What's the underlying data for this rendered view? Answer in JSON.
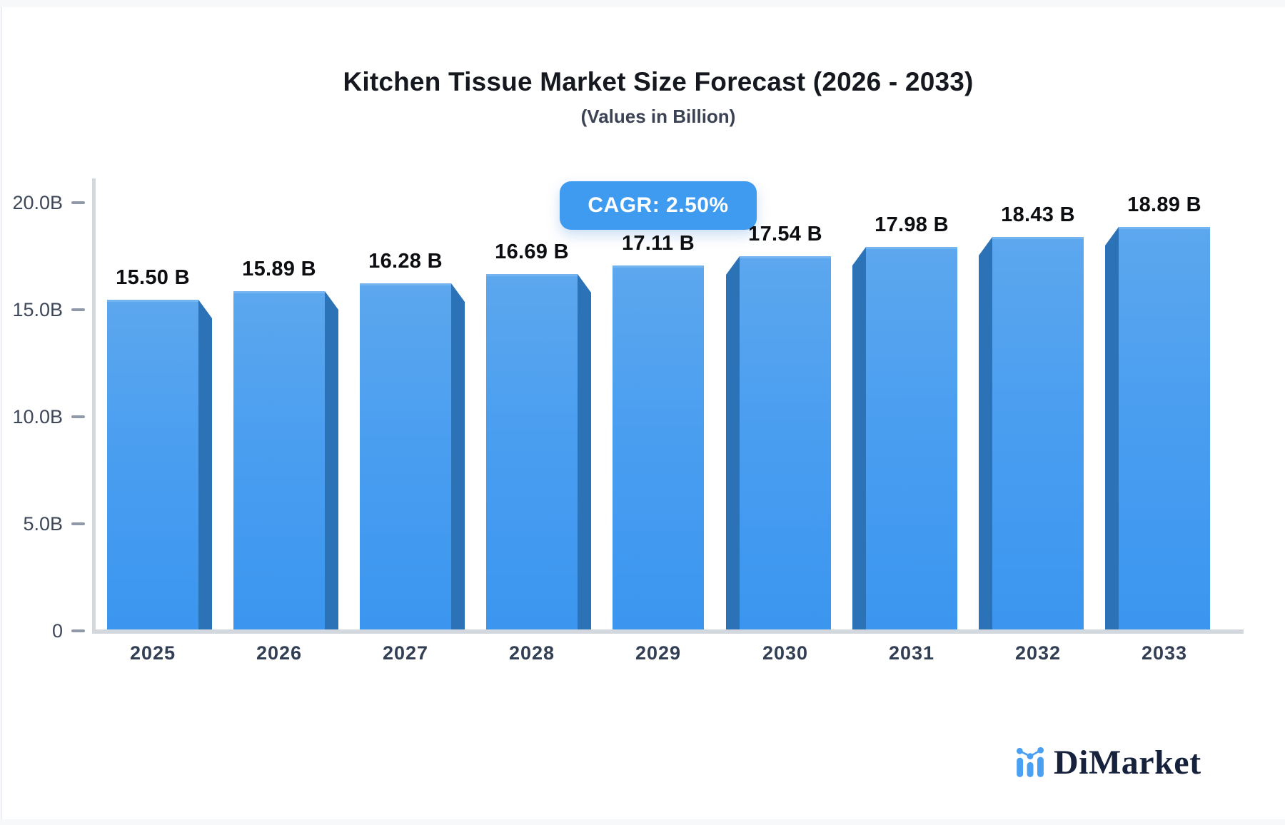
{
  "header": {
    "title": "Kitchen Tissue Market Size Forecast (2026 - 2033)",
    "subtitle": "(Values in Billion)"
  },
  "cagr_badge": {
    "label": "CAGR: 2.50%"
  },
  "chart_data": {
    "type": "bar",
    "title": "Kitchen Tissue Market Size Forecast (2026 - 2033)",
    "subtitle": "(Values in Billion)",
    "unit": "Billion",
    "categories": [
      "2025",
      "2026",
      "2027",
      "2028",
      "2029",
      "2030",
      "2031",
      "2032",
      "2033"
    ],
    "values": [
      15.5,
      15.89,
      16.28,
      16.69,
      17.11,
      17.54,
      17.98,
      18.43,
      18.89
    ],
    "value_labels": [
      "15.50 B",
      "15.89 B",
      "16.28 B",
      "16.69 B",
      "17.11 B",
      "17.54 B",
      "17.98 B",
      "18.43 B",
      "18.89 B"
    ],
    "cagr_percent": "2.50%",
    "ylim": [
      0,
      20
    ],
    "yticks": [
      {
        "label": "20.0B",
        "value": 20
      },
      {
        "label": "15.0B",
        "value": 15
      },
      {
        "label": "10.0B",
        "value": 10
      },
      {
        "label": "5.0B",
        "value": 5
      },
      {
        "label": "0",
        "value": 0
      }
    ],
    "grid": false,
    "legend": false,
    "colors": {
      "bar_top": "#5ca7ee",
      "bar_bottom": "#3b96ef",
      "bar_side": "#2b73b6",
      "axis": "#d3d7de",
      "badge": "#3f9bef"
    }
  },
  "footer": {
    "brand": "DiMarket",
    "logo_icon": "bar-line-chart-icon",
    "logo_color": "#4aa0f2"
  }
}
